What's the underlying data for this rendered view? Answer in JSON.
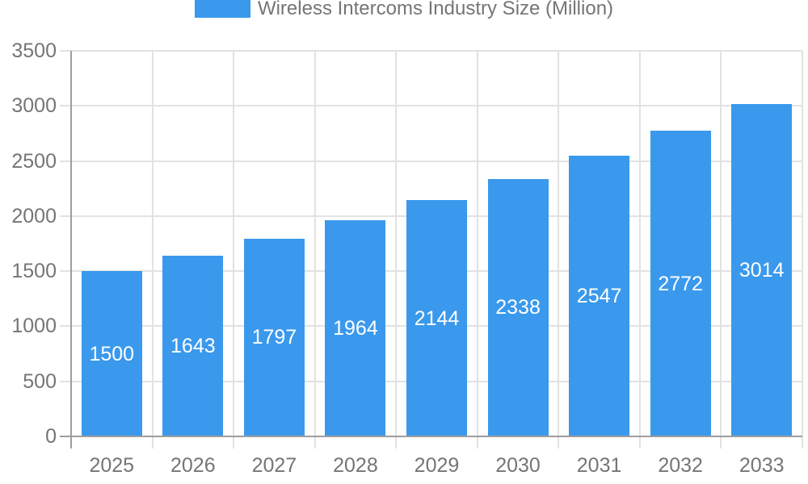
{
  "chart_data": {
    "type": "bar",
    "title": "Wireless Intercoms Industry Size (Million)",
    "categories": [
      "2025",
      "2026",
      "2027",
      "2028",
      "2029",
      "2030",
      "2031",
      "2032",
      "2033"
    ],
    "values": [
      1500,
      1643,
      1797,
      1964,
      2144,
      2338,
      2547,
      2772,
      3014
    ],
    "yticks": [
      0,
      500,
      1000,
      1500,
      2000,
      2500,
      3000,
      3500
    ],
    "ylim": [
      0,
      3500
    ],
    "xlabel": "",
    "ylabel": "",
    "grid": true,
    "legend_position": "top-center",
    "value_label_position": "inside-center",
    "colors": {
      "bar": "#3A99EC",
      "grid": "#E2E2E2",
      "axis": "#9E9E9E",
      "tick_label": "#757575",
      "legend_text": "#757575",
      "value_label": "#FFFFFF",
      "background": "#FFFFFF"
    }
  }
}
